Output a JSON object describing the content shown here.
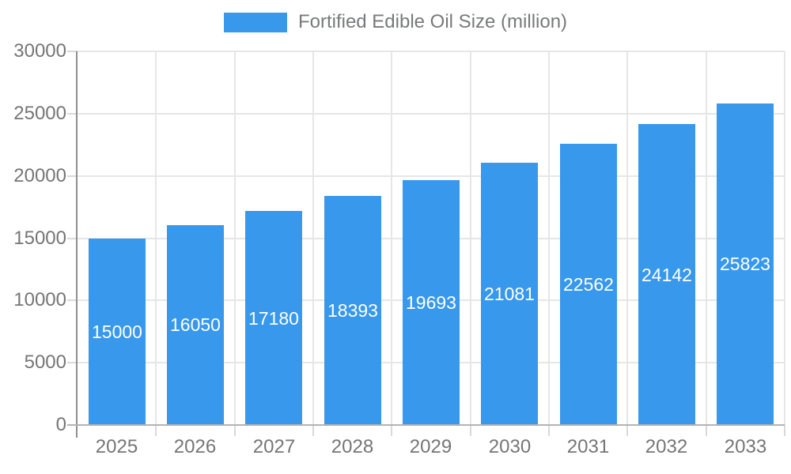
{
  "chart_data": {
    "type": "bar",
    "title": "Fortified Edible Oil Size (million)",
    "legend": [
      "Fortified Edible Oil Size (million)"
    ],
    "legend_position": "top-center",
    "categories": [
      "2025",
      "2026",
      "2027",
      "2028",
      "2029",
      "2030",
      "2031",
      "2032",
      "2033"
    ],
    "values": [
      15000,
      16050,
      17180,
      18393,
      19693,
      21081,
      22562,
      24142,
      25823
    ],
    "bar_value_labels": [
      "15000",
      "16050",
      "17180",
      "18393",
      "19693",
      "21081",
      "22562",
      "24142",
      "25823"
    ],
    "xlabel": "",
    "ylabel": "",
    "ylim": [
      0,
      30000
    ],
    "yticks": [
      0,
      5000,
      10000,
      15000,
      20000,
      25000,
      30000
    ],
    "ytick_labels": [
      "0",
      "5000",
      "10000",
      "15000",
      "20000",
      "25000",
      "30000"
    ],
    "grid": true,
    "colors": {
      "bar": "#3898EC",
      "bar_value_label": "#FFFFFF",
      "axis_text": "#757575",
      "legend_text": "#77797A",
      "grid_line": "#E6E6E6",
      "tick_line": "#D9D9D9",
      "y_axis_line": "#8F8F8F",
      "x_axis_line": "#B3B3B3",
      "background": "#FFFFFF"
    }
  }
}
